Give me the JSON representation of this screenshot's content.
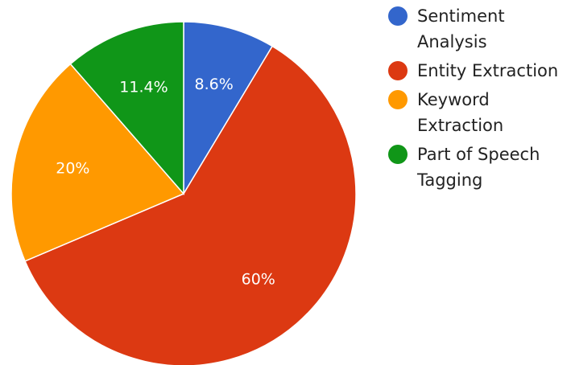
{
  "chart_data": {
    "type": "pie",
    "title": "",
    "legend_position": "right",
    "slices": [
      {
        "label": "Sentiment Analysis",
        "value": 8.6,
        "display": "8.6%",
        "color": "#3366CC"
      },
      {
        "label": "Entity Extraction",
        "value": 60,
        "display": "60%",
        "color": "#DC3912"
      },
      {
        "label": "Keyword Extraction",
        "value": 20,
        "display": "20%",
        "color": "#FF9900"
      },
      {
        "label": "Part of Speech Tagging",
        "value": 11.4,
        "display": "11.4%",
        "color": "#109618"
      }
    ]
  }
}
